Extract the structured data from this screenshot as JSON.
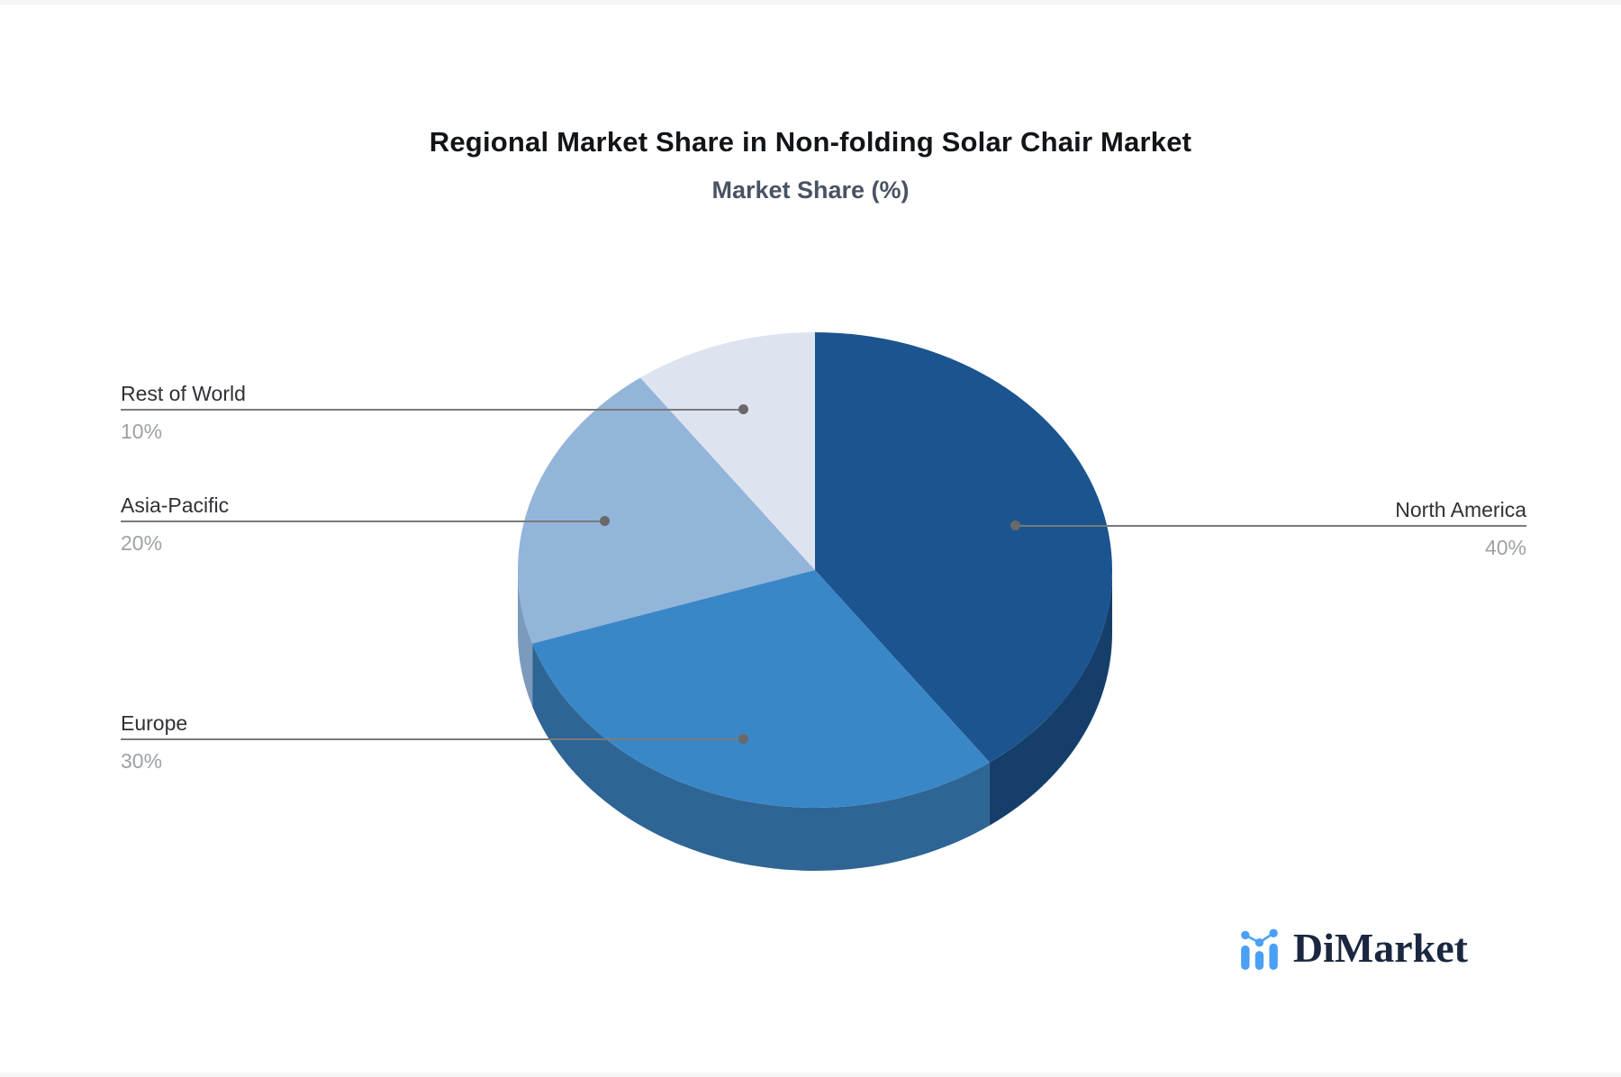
{
  "chart_data": {
    "type": "pie",
    "style": "3d",
    "title": "Regional Market Share in Non-folding Solar Chair Market",
    "subtitle": "Market Share (%)",
    "unit": "%",
    "start_angle_deg": 0,
    "direction": "clockwise",
    "slices": [
      {
        "label": "North America",
        "value": 40,
        "display": "40%",
        "color": "#1b548f",
        "side_color": "#153f6a"
      },
      {
        "label": "Europe",
        "value": 30,
        "display": "30%",
        "color": "#3a87c8",
        "side_color": "#2e6594"
      },
      {
        "label": "Asia-Pacific",
        "value": 20,
        "display": "20%",
        "color": "#93b5d9",
        "side_color": "#7b9abc"
      },
      {
        "label": "Rest of World",
        "value": 10,
        "display": "10%",
        "color": "#dde4ef",
        "side_color": "#b9c4d6"
      }
    ],
    "legend_position": "callouts",
    "accent_colors": {
      "leader_line": "#7a7a7a",
      "leader_dot": "#696969",
      "label_text": "#2f3136",
      "value_text": "#9da1a6"
    }
  },
  "logo": {
    "text": "DiMarket",
    "icon": "bar-chart-sparkline-icon",
    "icon_color": "#4aa0f5",
    "text_color": "#1b2740"
  }
}
